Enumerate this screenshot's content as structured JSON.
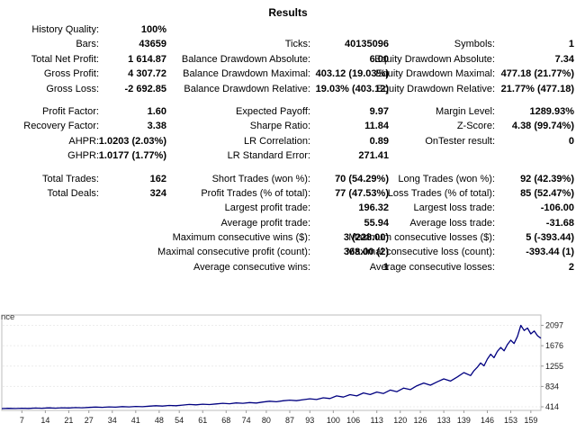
{
  "title": "Results",
  "accent_color": "#000080",
  "stats": {
    "rows": [
      [
        {
          "l": "History Quality:",
          "v": "100%"
        },
        null,
        null
      ],
      [
        {
          "l": "Bars:",
          "v": "43659"
        },
        {
          "l": "Ticks:",
          "v": "40135096"
        },
        {
          "l": "Symbols:",
          "v": "1"
        }
      ],
      [
        {
          "l": "Total Net Profit:",
          "v": "1 614.87"
        },
        {
          "l": "Balance Drawdown Absolute:",
          "v": "6.00"
        },
        {
          "l": "Equity Drawdown Absolute:",
          "v": "7.34"
        }
      ],
      [
        {
          "l": "Gross Profit:",
          "v": "4 307.72"
        },
        {
          "l": "Balance Drawdown Maximal:",
          "v": "403.12 (19.03%)"
        },
        {
          "l": "Equity Drawdown Maximal:",
          "v": "477.18 (21.77%)"
        }
      ],
      [
        {
          "l": "Gross Loss:",
          "v": "-2 692.85"
        },
        {
          "l": "Balance Drawdown Relative:",
          "v": "19.03% (403.12)"
        },
        {
          "l": "Equity Drawdown Relative:",
          "v": "21.77% (477.18)"
        }
      ],
      null,
      [
        {
          "l": "Profit Factor:",
          "v": "1.60"
        },
        {
          "l": "Expected Payoff:",
          "v": "9.97"
        },
        {
          "l": "Margin Level:",
          "v": "1289.93%"
        }
      ],
      [
        {
          "l": "Recovery Factor:",
          "v": "3.38"
        },
        {
          "l": "Sharpe Ratio:",
          "v": "11.84"
        },
        {
          "l": "Z-Score:",
          "v": "4.38 (99.74%)"
        }
      ],
      [
        {
          "l": "AHPR:",
          "v": "1.0203 (2.03%)"
        },
        {
          "l": "LR Correlation:",
          "v": "0.89"
        },
        {
          "l": "OnTester result:",
          "v": "0"
        }
      ],
      [
        {
          "l": "GHPR:",
          "v": "1.0177 (1.77%)"
        },
        {
          "l": "LR Standard Error:",
          "v": "271.41"
        },
        null
      ],
      null,
      [
        {
          "l": "Total Trades:",
          "v": "162"
        },
        {
          "l": "Short Trades (won %):",
          "v": "70 (54.29%)"
        },
        {
          "l": "Long Trades (won %):",
          "v": "92 (42.39%)"
        }
      ],
      [
        {
          "l": "Total Deals:",
          "v": "324"
        },
        {
          "l": "Profit Trades (% of total):",
          "v": "77 (47.53%)"
        },
        {
          "l": "Loss Trades (% of total):",
          "v": "85 (52.47%)"
        }
      ],
      [
        null,
        {
          "l": "Largest profit trade:",
          "v": "196.32"
        },
        {
          "l": "Largest loss trade:",
          "v": "-106.00"
        }
      ],
      [
        null,
        {
          "l": "Average profit trade:",
          "v": "55.94"
        },
        {
          "l": "Average loss trade:",
          "v": "-31.68"
        }
      ],
      [
        null,
        {
          "l": "Maximum consecutive wins ($):",
          "v": "3 (228.00)"
        },
        {
          "l": "Maximum consecutive losses ($):",
          "v": "5 (-393.44)"
        }
      ],
      [
        null,
        {
          "l": "Maximal consecutive profit (count):",
          "v": "368.00 (2)"
        },
        {
          "l": "Maximal consecutive loss (count):",
          "v": "-393.44 (1)"
        }
      ],
      [
        null,
        {
          "l": "Average consecutive wins:",
          "v": "1"
        },
        {
          "l": "Average consecutive losses:",
          "v": "2"
        }
      ]
    ]
  },
  "chart_data": {
    "type": "line",
    "title": "",
    "partial_axis_label": "nce",
    "x_ticks": [
      7,
      14,
      21,
      27,
      34,
      41,
      48,
      54,
      61,
      68,
      74,
      80,
      87,
      93,
      100,
      106,
      113,
      120,
      126,
      133,
      139,
      146,
      153,
      159
    ],
    "y_ticks": [
      2097,
      1676,
      1255,
      834,
      414
    ],
    "xlim": [
      1,
      162
    ],
    "ylim": [
      340,
      2310
    ],
    "grid": true,
    "y_axis_side": "right",
    "line_color": "#000080",
    "series": [
      {
        "name": "Balance",
        "points": [
          [
            1,
            378
          ],
          [
            3,
            382
          ],
          [
            5,
            379
          ],
          [
            7,
            385
          ],
          [
            9,
            381
          ],
          [
            11,
            388
          ],
          [
            13,
            384
          ],
          [
            15,
            392
          ],
          [
            17,
            387
          ],
          [
            19,
            394
          ],
          [
            21,
            390
          ],
          [
            23,
            398
          ],
          [
            25,
            393
          ],
          [
            27,
            402
          ],
          [
            29,
            408
          ],
          [
            31,
            403
          ],
          [
            33,
            412
          ],
          [
            35,
            407
          ],
          [
            37,
            418
          ],
          [
            39,
            412
          ],
          [
            41,
            422
          ],
          [
            43,
            416
          ],
          [
            45,
            428
          ],
          [
            47,
            436
          ],
          [
            49,
            430
          ],
          [
            51,
            442
          ],
          [
            53,
            436
          ],
          [
            55,
            450
          ],
          [
            57,
            462
          ],
          [
            59,
            455
          ],
          [
            61,
            468
          ],
          [
            63,
            460
          ],
          [
            65,
            474
          ],
          [
            67,
            486
          ],
          [
            69,
            478
          ],
          [
            71,
            494
          ],
          [
            73,
            486
          ],
          [
            75,
            502
          ],
          [
            77,
            492
          ],
          [
            79,
            512
          ],
          [
            81,
            530
          ],
          [
            83,
            518
          ],
          [
            85,
            538
          ],
          [
            87,
            552
          ],
          [
            89,
            540
          ],
          [
            91,
            562
          ],
          [
            93,
            580
          ],
          [
            95,
            565
          ],
          [
            97,
            600
          ],
          [
            99,
            585
          ],
          [
            101,
            640
          ],
          [
            103,
            615
          ],
          [
            105,
            665
          ],
          [
            107,
            640
          ],
          [
            109,
            700
          ],
          [
            111,
            668
          ],
          [
            113,
            720
          ],
          [
            115,
            690
          ],
          [
            117,
            760
          ],
          [
            119,
            726
          ],
          [
            121,
            800
          ],
          [
            123,
            770
          ],
          [
            125,
            850
          ],
          [
            127,
            905
          ],
          [
            129,
            860
          ],
          [
            131,
            930
          ],
          [
            133,
            990
          ],
          [
            135,
            945
          ],
          [
            137,
            1030
          ],
          [
            139,
            1120
          ],
          [
            141,
            1060
          ],
          [
            142,
            1160
          ],
          [
            143,
            1230
          ],
          [
            144,
            1320
          ],
          [
            145,
            1260
          ],
          [
            146,
            1400
          ],
          [
            147,
            1500
          ],
          [
            148,
            1430
          ],
          [
            149,
            1560
          ],
          [
            150,
            1640
          ],
          [
            151,
            1570
          ],
          [
            152,
            1700
          ],
          [
            153,
            1790
          ],
          [
            154,
            1720
          ],
          [
            155,
            1870
          ],
          [
            156,
            2097
          ],
          [
            157,
            1990
          ],
          [
            158,
            2040
          ],
          [
            159,
            1920
          ],
          [
            160,
            1980
          ],
          [
            161,
            1880
          ],
          [
            162,
            1830
          ]
        ]
      }
    ]
  }
}
